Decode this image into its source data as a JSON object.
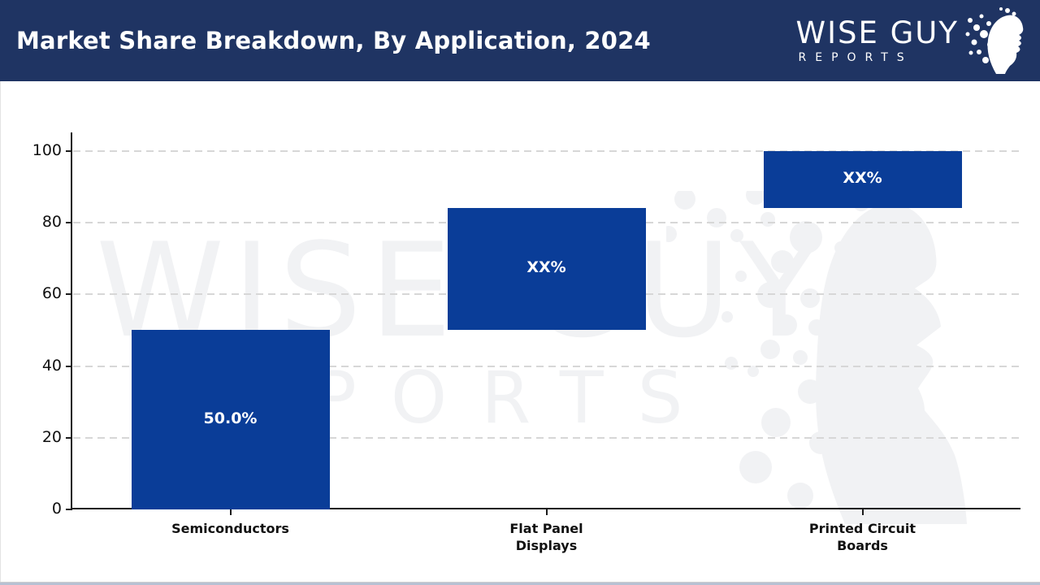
{
  "header": {
    "title": "Market Share Breakdown, By Application, 2024",
    "logo": {
      "line1": "WISE GUY",
      "line2": "REPORTS"
    }
  },
  "watermark": {
    "line1": "WISE GUY",
    "line2": "REPORTS"
  },
  "chart_data": {
    "type": "bar",
    "variant": "waterfall-floating-bars",
    "title": "Market Share Breakdown, By Application, 2024",
    "categories": [
      "Semiconductors",
      "Flat Panel Displays",
      "Printed Circuit Boards"
    ],
    "category_label_lines": [
      [
        "Semiconductors"
      ],
      [
        "Flat Panel",
        "Displays"
      ],
      [
        "Printed Circuit",
        "Boards"
      ]
    ],
    "bars": [
      {
        "category": "Semiconductors",
        "start": 0,
        "end": 50,
        "label": "50.0%"
      },
      {
        "category": "Flat Panel Displays",
        "start": 50,
        "end": 84,
        "label": "XX%"
      },
      {
        "category": "Printed Circuit Boards",
        "start": 84,
        "end": 100,
        "label": "XX%"
      }
    ],
    "xlabel": "",
    "ylabel": "",
    "ylim": [
      0,
      100
    ],
    "yticks": [
      0,
      20,
      40,
      60,
      80,
      100
    ],
    "grid": "horizontal-dashed",
    "legend": false,
    "colors": {
      "bar": "#0a3d98",
      "bar_label": "#ffffff",
      "axis": "#1b1b1b",
      "grid": "#d7d7d7",
      "header_background": "#1f3463",
      "header_text": "#ffffff",
      "watermark": "#f1f2f4"
    }
  }
}
